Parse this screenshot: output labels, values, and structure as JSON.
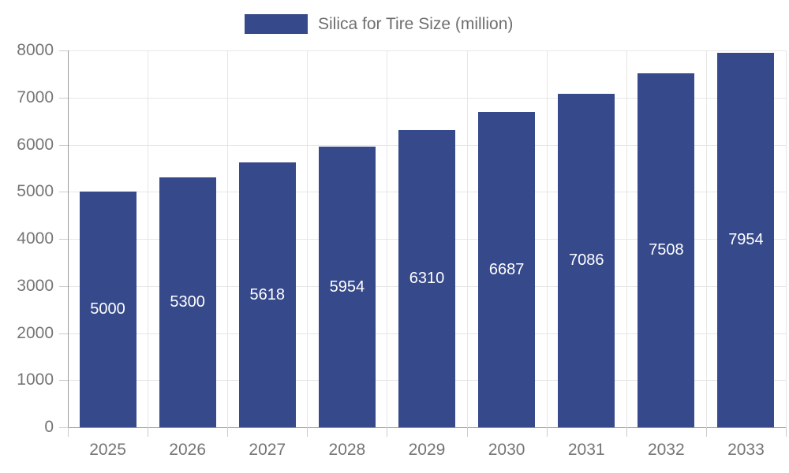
{
  "chart_data": {
    "type": "bar",
    "title": "",
    "legend": {
      "label": "Silica for Tire Size (million)",
      "position": "top"
    },
    "categories": [
      "2025",
      "2026",
      "2027",
      "2028",
      "2029",
      "2030",
      "2031",
      "2032",
      "2033"
    ],
    "values": [
      5000,
      5300,
      5618,
      5954,
      6310,
      6687,
      7086,
      7508,
      7954
    ],
    "xlabel": "",
    "ylabel": "",
    "ylim": [
      0,
      8000
    ],
    "ytick_interval": 1000,
    "grid": true,
    "colors": {
      "bar": "#36498B",
      "bar_label": "#FFFFFF",
      "axis_line": "#999999",
      "gridline": "#E6E6E6",
      "tick_mark": "#CCCCCC",
      "tick_text": "#757575",
      "legend_text": "#6E6E6E",
      "background": "#FFFFFF"
    }
  }
}
